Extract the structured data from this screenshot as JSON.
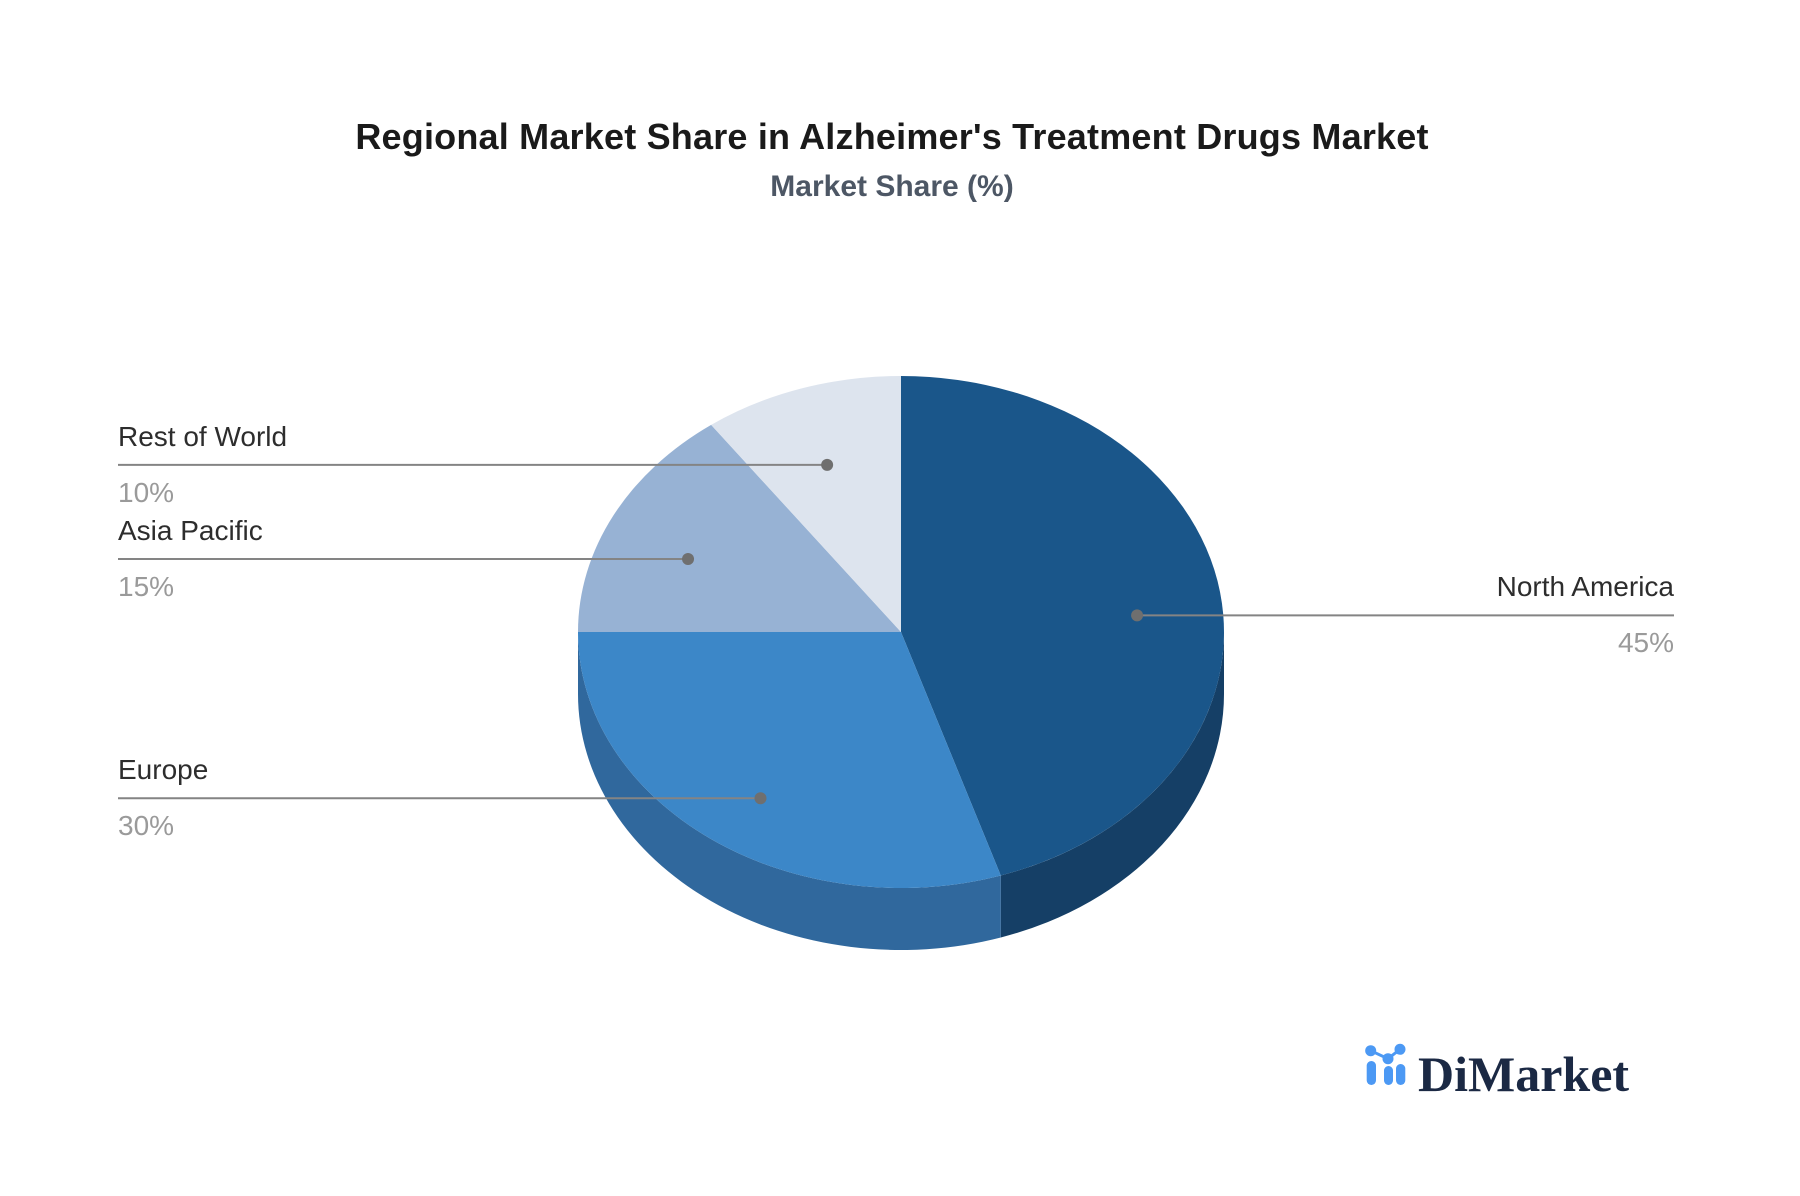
{
  "page": {
    "background": "#FFFFFF"
  },
  "header": {
    "title": "Regional Market Share in Alzheimer's Treatment Drugs Market",
    "subtitle": "Market Share (%)",
    "title_color": "#1A1A1A",
    "subtitle_color": "#4D5765"
  },
  "chart_data": {
    "type": "pie",
    "style": "3d",
    "title": "Regional Market Share in Alzheimer's Treatment Drugs Market",
    "subtitle": "Market Share (%)",
    "unit": "%",
    "start_angle": "12-oclock",
    "direction": "clockwise",
    "legend_position": "none",
    "slices": [
      {
        "label": "North America",
        "value": 45,
        "display": "45%",
        "color": "#1A568A",
        "side_color": "#153F66",
        "label_side": "right"
      },
      {
        "label": "Europe",
        "value": 30,
        "display": "30%",
        "color": "#3C87C8",
        "side_color": "#30689D",
        "label_side": "left"
      },
      {
        "label": "Asia Pacific",
        "value": 15,
        "display": "15%",
        "color": "#97B2D4",
        "side_color": "#7A94B3",
        "label_side": "left"
      },
      {
        "label": "Rest of World",
        "value": 10,
        "display": "10%",
        "color": "#DDE4EE",
        "side_color": "#B9C3D2",
        "label_side": "left"
      }
    ],
    "colors": {
      "label_text": "#2D2D2D",
      "value_text": "#9A9A9A",
      "leader_line": "#848484",
      "leader_dot": "#6F6F6F"
    }
  },
  "brand": {
    "name": "DiMarket",
    "logo_icon": "bar-chart-with-trend-dots-icon",
    "icon_color": "#4C99F4",
    "text_color": "#1B2944"
  }
}
